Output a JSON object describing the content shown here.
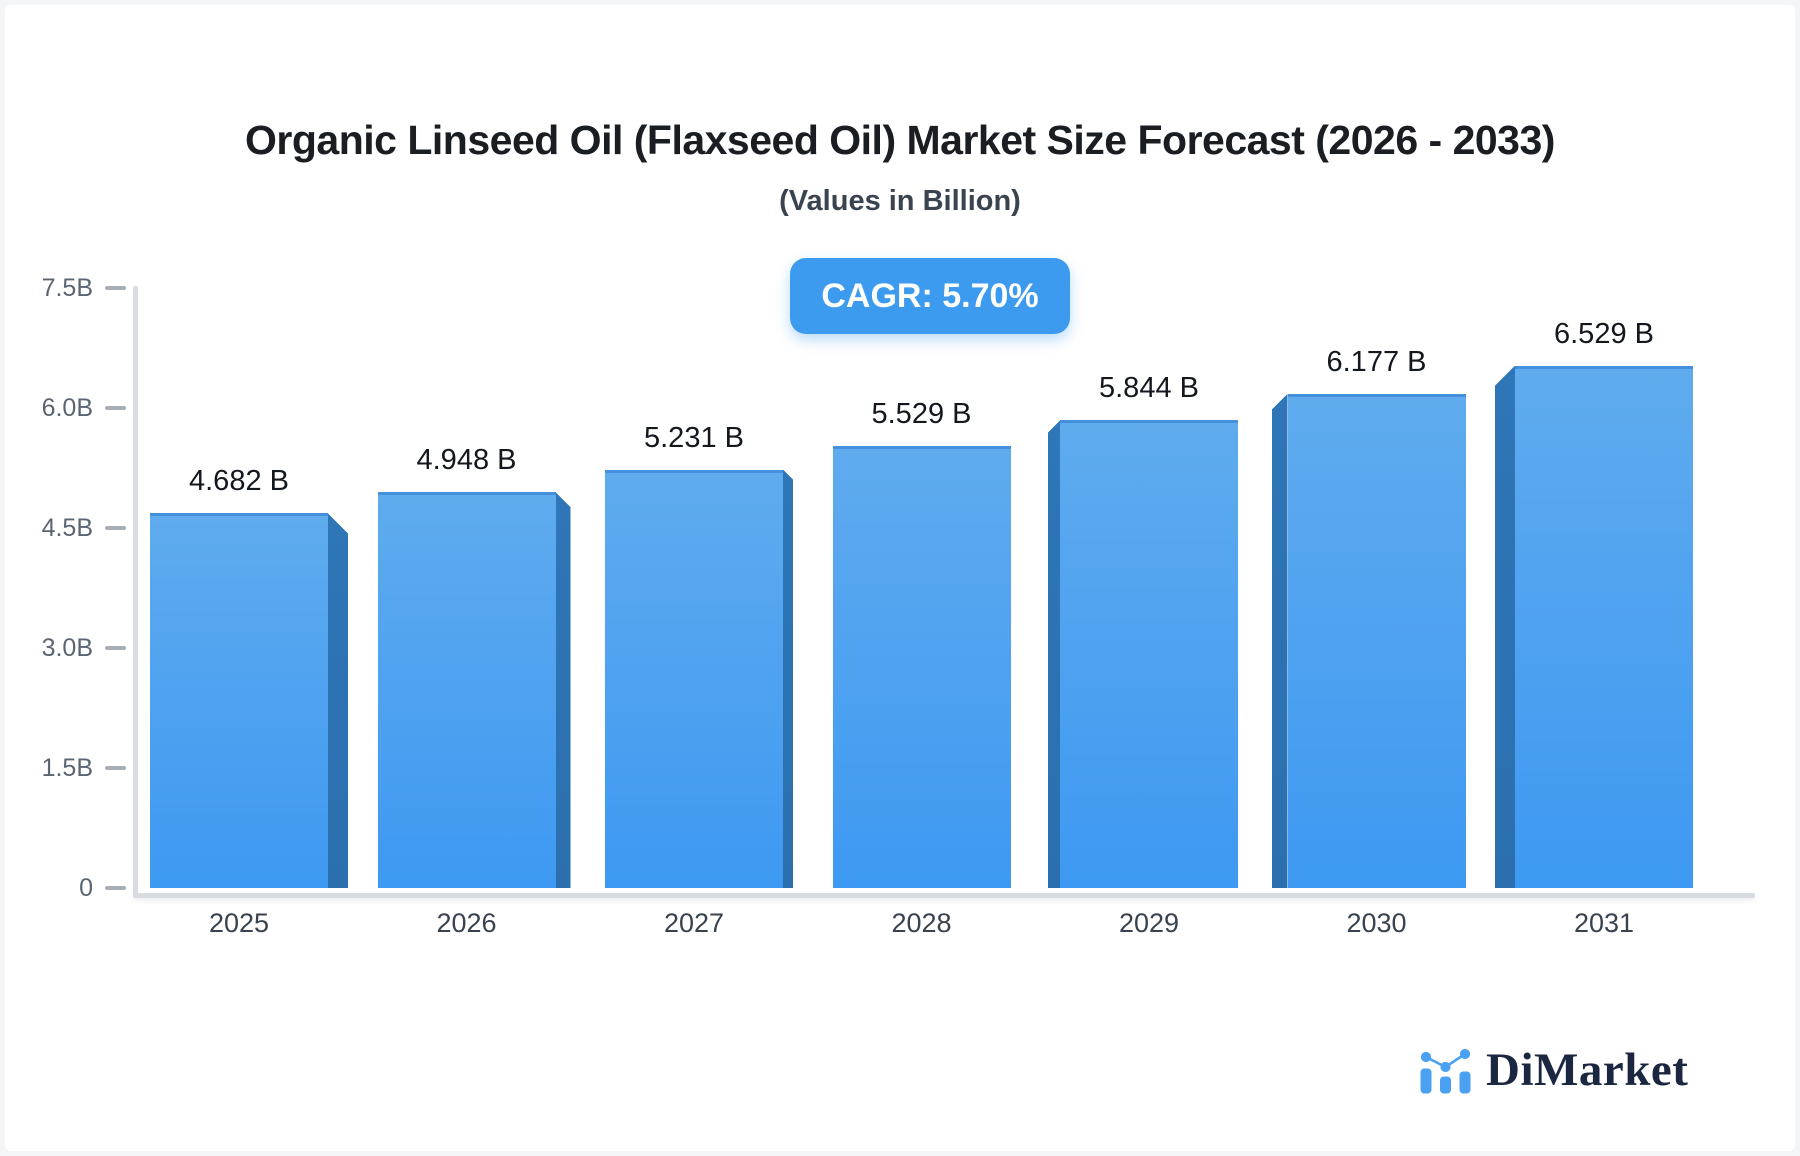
{
  "title": "Organic Linseed Oil (Flaxseed Oil) Market Size Forecast (2026 - 2033)",
  "subtitle": "(Values in Billion)",
  "badge": {
    "label": "CAGR: 5.70%"
  },
  "logo": {
    "text": "DiMarket"
  },
  "chart_data": {
    "type": "bar",
    "title": "Organic Linseed Oil (Flaxseed Oil) Market Size Forecast (2026 - 2033)",
    "subtitle": "(Values in Billion)",
    "unit": "Billion",
    "cagr": "5.70%",
    "categories": [
      "2025",
      "2026",
      "2027",
      "2028",
      "2029",
      "2030",
      "2031"
    ],
    "values": [
      4.682,
      4.948,
      5.231,
      5.529,
      5.844,
      6.177,
      6.529
    ],
    "value_labels": [
      "4.682 B",
      "4.948 B",
      "5.231 B",
      "5.529 B",
      "5.844 B",
      "6.177 B",
      "6.529 B"
    ],
    "xlabel": "",
    "ylabel": "",
    "ylim": [
      0,
      7.5
    ],
    "yticks": {
      "values": [
        0,
        1.5,
        3.0,
        4.5,
        6.0,
        7.5
      ],
      "labels": [
        "0",
        "1.5B",
        "3.0B",
        "4.5B",
        "6.0B",
        "7.5B"
      ]
    },
    "grid": false,
    "legend": false
  },
  "colors": {
    "page_bg": "#f3f5f7",
    "card_bg": "#ffffff",
    "bar_face_top": "#5fabee",
    "bar_face_bottom": "#3e99f2",
    "bar_top_edge": "#4490dc",
    "bar_side_top": "#34546e00",
    "bar_side": "#2e76b8",
    "bar_side_dark": "#2b6fae",
    "badge_bg": "#3d9bef",
    "axis_line": "#d8dbe0",
    "tick_dash": "#a7aeb6",
    "logo_icon": "#4ba1f1",
    "logo_text": "#1b2740"
  }
}
